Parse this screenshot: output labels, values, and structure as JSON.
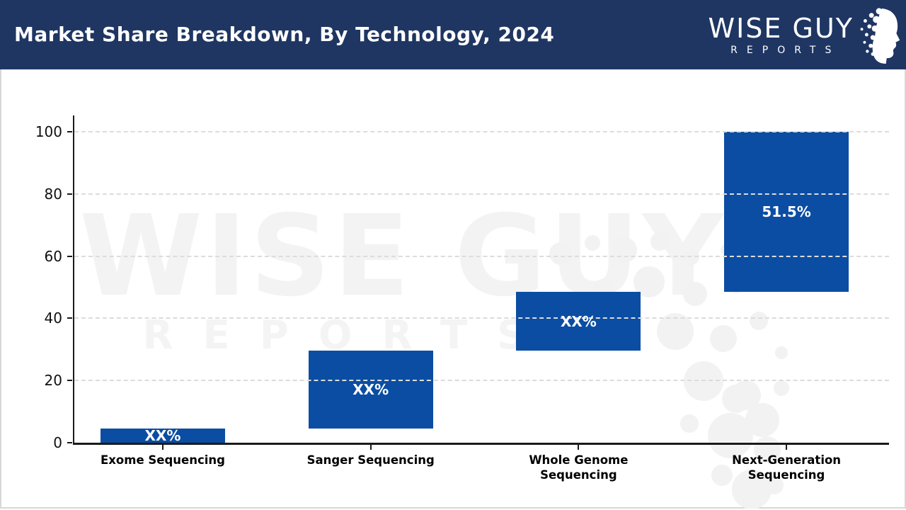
{
  "header": {
    "title": "Market Share Breakdown, By Technology, 2024",
    "logo": {
      "primary": "WISE GUY",
      "secondary": "REPORTS"
    }
  },
  "watermark": {
    "primary": "WISE GUY",
    "secondary": "REPORTS"
  },
  "chart_data": {
    "type": "bar",
    "subtype": "waterfall",
    "title": "Market Share Breakdown, By Technology, 2024",
    "categories": [
      "Exome Sequencing",
      "Sanger Sequencing",
      "Whole Genome\nSequencing",
      "Next-Generation\nSequencing"
    ],
    "segments": [
      {
        "category": "Exome Sequencing",
        "start": 0,
        "end": 4.5,
        "value_label": "XX%"
      },
      {
        "category": "Sanger Sequencing",
        "start": 4.5,
        "end": 29.5,
        "value_label": "XX%"
      },
      {
        "category": "Whole Genome Sequencing",
        "start": 29.5,
        "end": 48.5,
        "value_label": "XX%"
      },
      {
        "category": "Next-Generation Sequencing",
        "start": 48.5,
        "end": 100,
        "value_label": "51.5%"
      }
    ],
    "xlabel": "",
    "ylabel": "",
    "ylim": [
      0,
      100
    ],
    "yticks": [
      0,
      20,
      40,
      60,
      80,
      100
    ],
    "grid": true,
    "grid_style": "dashed",
    "legend": "none",
    "bar_color": "#0b4da2",
    "bar_label_color": "#ffffff"
  },
  "colors": {
    "header_bg": "#1f3663",
    "bar": "#0b4da2",
    "grid": "#dcdcdc",
    "axis": "#1a1a1a",
    "border": "#d7d7d7",
    "watermark": "#f3f3f3"
  }
}
